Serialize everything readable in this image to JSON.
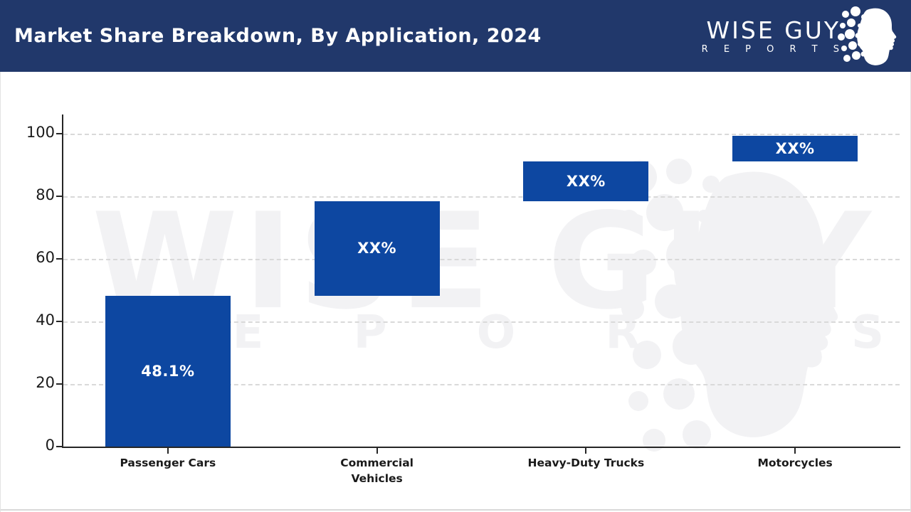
{
  "header": {
    "title": "Market Share Breakdown, By Application, 2024",
    "bg_color": "#21386B",
    "logo": {
      "line1": "WISE GUY",
      "line2": "R E P O R T S"
    }
  },
  "watermark": {
    "line1": "WISE GUY",
    "line2": "R E P O R T S"
  },
  "chart_data": {
    "type": "bar",
    "subtype": "stacked-breakdown-floating-segments",
    "title": "Market Share Breakdown, By Application, 2024",
    "categories": [
      "Passenger Cars",
      "Commercial\nVehicles",
      "Heavy-Duty Trucks",
      "Motorcycles"
    ],
    "segments": [
      {
        "category": "Passenger Cars",
        "from": 0,
        "to": 48.1,
        "label": "48.1%"
      },
      {
        "category": "Commercial Vehicles",
        "from": 48.1,
        "to": 78.5,
        "label": "XX%"
      },
      {
        "category": "Heavy-Duty Trucks",
        "from": 78.5,
        "to": 91.2,
        "label": "XX%"
      },
      {
        "category": "Motorcycles",
        "from": 91.2,
        "to": 99.4,
        "label": "XX%"
      }
    ],
    "yticks": [
      0,
      20,
      40,
      60,
      80,
      100
    ],
    "ylim": [
      0,
      106
    ],
    "xlabel": "",
    "ylabel": "",
    "grid": "horizontal-dashed",
    "bar_color": "#0d47a1",
    "bar_label_color": "#ffffff",
    "axis_color": "#262626",
    "gridline_color": "#d9d9d9"
  }
}
